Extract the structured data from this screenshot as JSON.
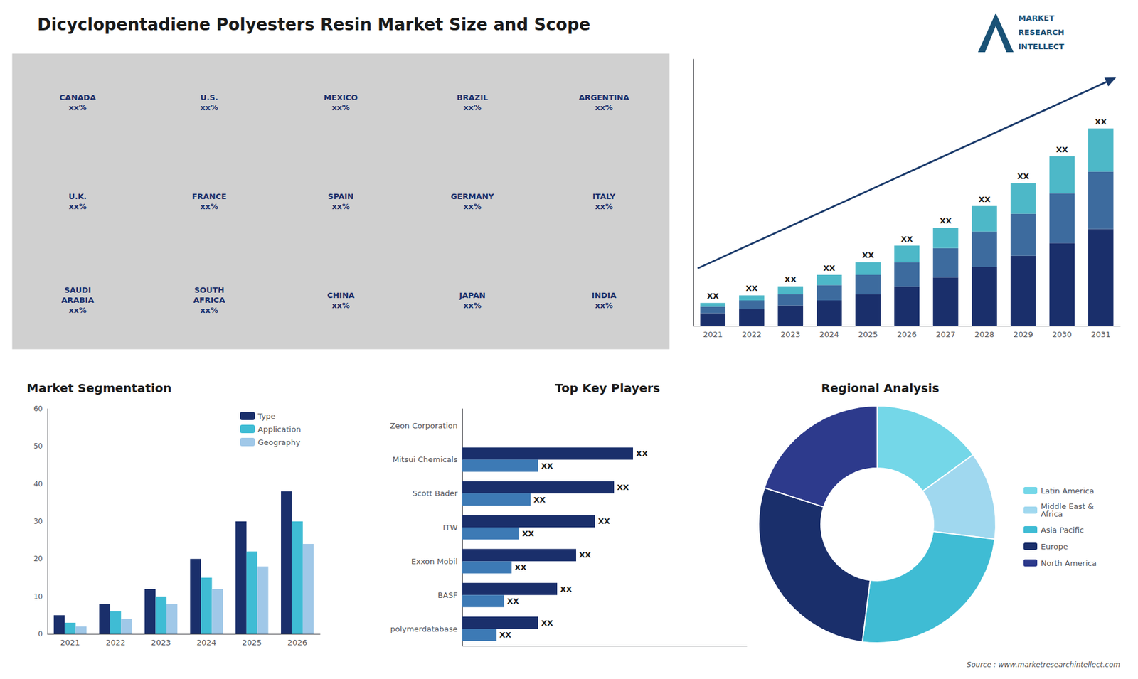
{
  "title": "Dicyclopentadiene Polyesters Resin Market Size and Scope",
  "annotations": [
    "Source : www.marketresearchintellect.com",
    "MARKET",
    "RESEARCH",
    "INTELLECT"
  ],
  "chart_data": [
    {
      "type": "map",
      "annotations": [
        "CANADA\nxx%",
        "U.S.\nxx%",
        "MEXICO\nxx%",
        "BRAZIL\nxx%",
        "ARGENTINA\nxx%",
        "U.K.\nxx%",
        "FRANCE\nxx%",
        "SPAIN\nxx%",
        "GERMANY\nxx%",
        "ITALY\nxx%",
        "SAUDI\nARABIA\nxx%",
        "SOUTH\nAFRICA\nxx%",
        "CHINA\nxx%",
        "JAPAN\nxx%",
        "INDIA\nxx%"
      ]
    },
    {
      "type": "bar",
      "stacked": true,
      "categories": [
        "2021",
        "2022",
        "2023",
        "2024",
        "2025",
        "2026",
        "2027",
        "2028",
        "2029",
        "2030",
        "2031"
      ],
      "series": [
        {
          "color": "#1a2f6b",
          "values": [
            1,
            1.3,
            1.6,
            2.0,
            2.5,
            3.1,
            3.8,
            4.6,
            5.5,
            6.5,
            7.6
          ]
        },
        {
          "color": "#3d6b9e",
          "values": [
            0.5,
            0.7,
            0.9,
            1.2,
            1.5,
            1.9,
            2.3,
            2.8,
            3.3,
            3.9,
            4.5
          ]
        },
        {
          "color": "#4db8c8",
          "values": [
            0.3,
            0.4,
            0.6,
            0.8,
            1.0,
            1.3,
            1.6,
            2.0,
            2.4,
            2.9,
            3.4
          ],
          "value_labels": [
            "XX",
            "XX",
            "XX",
            "XX",
            "XX",
            "XX",
            "XX",
            "XX",
            "XX",
            "XX",
            "XX"
          ]
        }
      ],
      "data_labels": true,
      "ylim": [
        0,
        20.925
      ],
      "tick_labels": "x",
      "grid": false
    },
    {
      "type": "bar",
      "title": "Market Segmentation",
      "categories": [
        "2021",
        "2022",
        "2023",
        "2024",
        "2025",
        "2026"
      ],
      "series": [
        {
          "name": "Type",
          "color": "#1a2f6b",
          "values": [
            5,
            8,
            12,
            20,
            30,
            38
          ]
        },
        {
          "name": "Application",
          "color": "#3fbcd4",
          "values": [
            3,
            6,
            10,
            15,
            22,
            30
          ]
        },
        {
          "name": "Geography",
          "color": "#a0c8e8",
          "values": [
            2,
            4,
            8,
            12,
            18,
            24
          ]
        }
      ],
      "ylim": [
        0,
        60
      ],
      "yticks": [
        0,
        10,
        20,
        30,
        40,
        50,
        60
      ],
      "grid": false,
      "legend": "upper right"
    },
    {
      "type": "bar",
      "orientation": "horizontal",
      "title": "Top Key Players",
      "categories": [
        "Zeon Corporation",
        "Mitsui Chemicals",
        "Scott Bader",
        "ITW",
        "Exxon Mobil",
        "BASF",
        "polymerdatabase"
      ],
      "series": [
        {
          "color": "#1a2f6b",
          "values": [
            0,
            4.5,
            4.0,
            3.5,
            3.0,
            2.5,
            2.0
          ],
          "value_labels": [
            null,
            "XX",
            "XX",
            "XX",
            "XX",
            "XX",
            "XX"
          ]
        },
        {
          "color": "#3d7ab5",
          "values": [
            0,
            2.0,
            1.8,
            1.5,
            1.3,
            1.1,
            0.9
          ],
          "value_labels": [
            null,
            "XX",
            "XX",
            "XX",
            "XX",
            "XX",
            "XX"
          ]
        }
      ],
      "data_labels": true,
      "xlim": [
        0,
        7.5
      ],
      "tick_labels": "y",
      "grid": false
    },
    {
      "type": "pie",
      "title": "Regional Analysis",
      "categories": [
        "Latin America",
        "Middle East &\nAfrica",
        "Asia Pacific",
        "Europe",
        "North America"
      ],
      "values": [
        15,
        12,
        25,
        28,
        20
      ],
      "colors": [
        "#74d7e8",
        "#a0d8ef",
        "#3fbcd4",
        "#1a2f6b",
        "#2d3a8c"
      ],
      "legend": "right"
    }
  ]
}
